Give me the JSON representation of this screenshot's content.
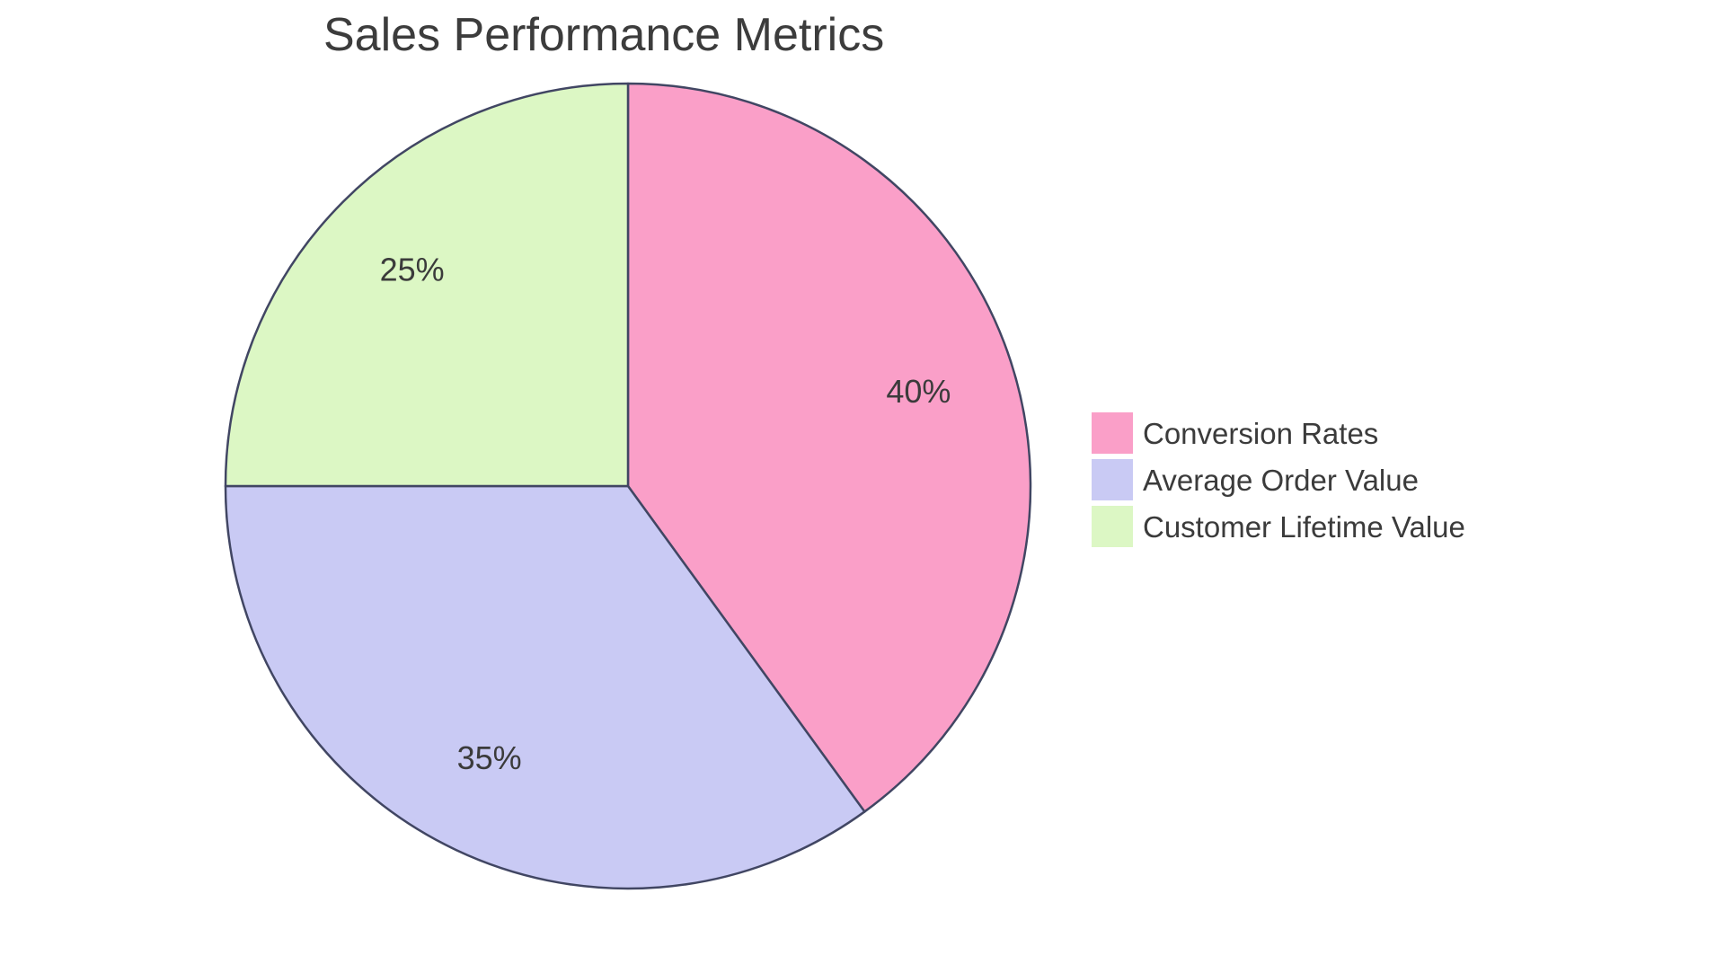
{
  "page": {
    "background_color": "#ffffff"
  },
  "chart": {
    "title": "Sales Performance Metrics",
    "title_color": "#3c3c3c"
  },
  "chart_data": {
    "type": "pie",
    "title": "Sales Performance Metrics",
    "categories": [
      "Conversion Rates",
      "Average Order Value",
      "Customer Lifetime Value"
    ],
    "values": [
      40,
      35,
      25
    ],
    "slices": [
      {
        "label": "Conversion Rates",
        "value": 40,
        "pct_label": "40%",
        "color": "#FA9FC8"
      },
      {
        "label": "Average Order Value",
        "value": 35,
        "pct_label": "35%",
        "color": "#C9CAF4"
      },
      {
        "label": "Customer Lifetime Value",
        "value": 25,
        "pct_label": "25%",
        "color": "#DCF7C4"
      }
    ],
    "start_angle_deg": 0,
    "direction": "clockwise",
    "stroke_color": "#414663",
    "percent_label_color": "#3b3b3b",
    "legend_position": "right",
    "legend_entries": [
      "Conversion Rates",
      "Average Order Value",
      "Customer Lifetime Value"
    ]
  }
}
